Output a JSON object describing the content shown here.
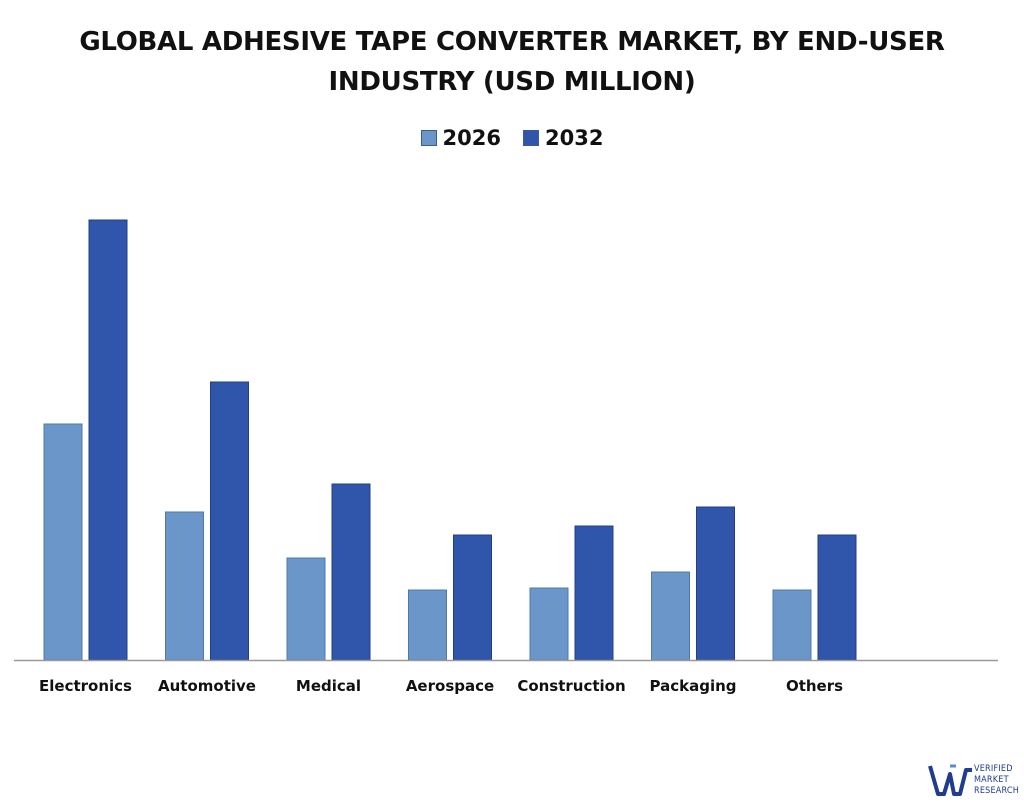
{
  "chart_data": {
    "type": "bar",
    "title": "GLOBAL ADHESIVE TAPE CONVERTER MARKET, BY END-USER INDUSTRY (USD MILLION)",
    "categories": [
      "Electronics",
      "Automotive",
      "Medical",
      "Aerospace",
      "Construction",
      "Packaging",
      "Others"
    ],
    "series": [
      {
        "name": "2026",
        "color": "#6a96c9",
        "values": [
          236,
          148,
          102,
          70,
          72,
          88,
          70
        ]
      },
      {
        "name": "2032",
        "color": "#2f56ab",
        "values": [
          440,
          278,
          176,
          125,
          134,
          153,
          125
        ]
      }
    ],
    "xlabel": "",
    "ylabel": "",
    "ylim": [
      0,
      480
    ],
    "grid": false,
    "legend": "top-center"
  },
  "logo": {
    "line1": "VERIFIED",
    "line2": "MARKET",
    "line3": "RESEARCH"
  }
}
